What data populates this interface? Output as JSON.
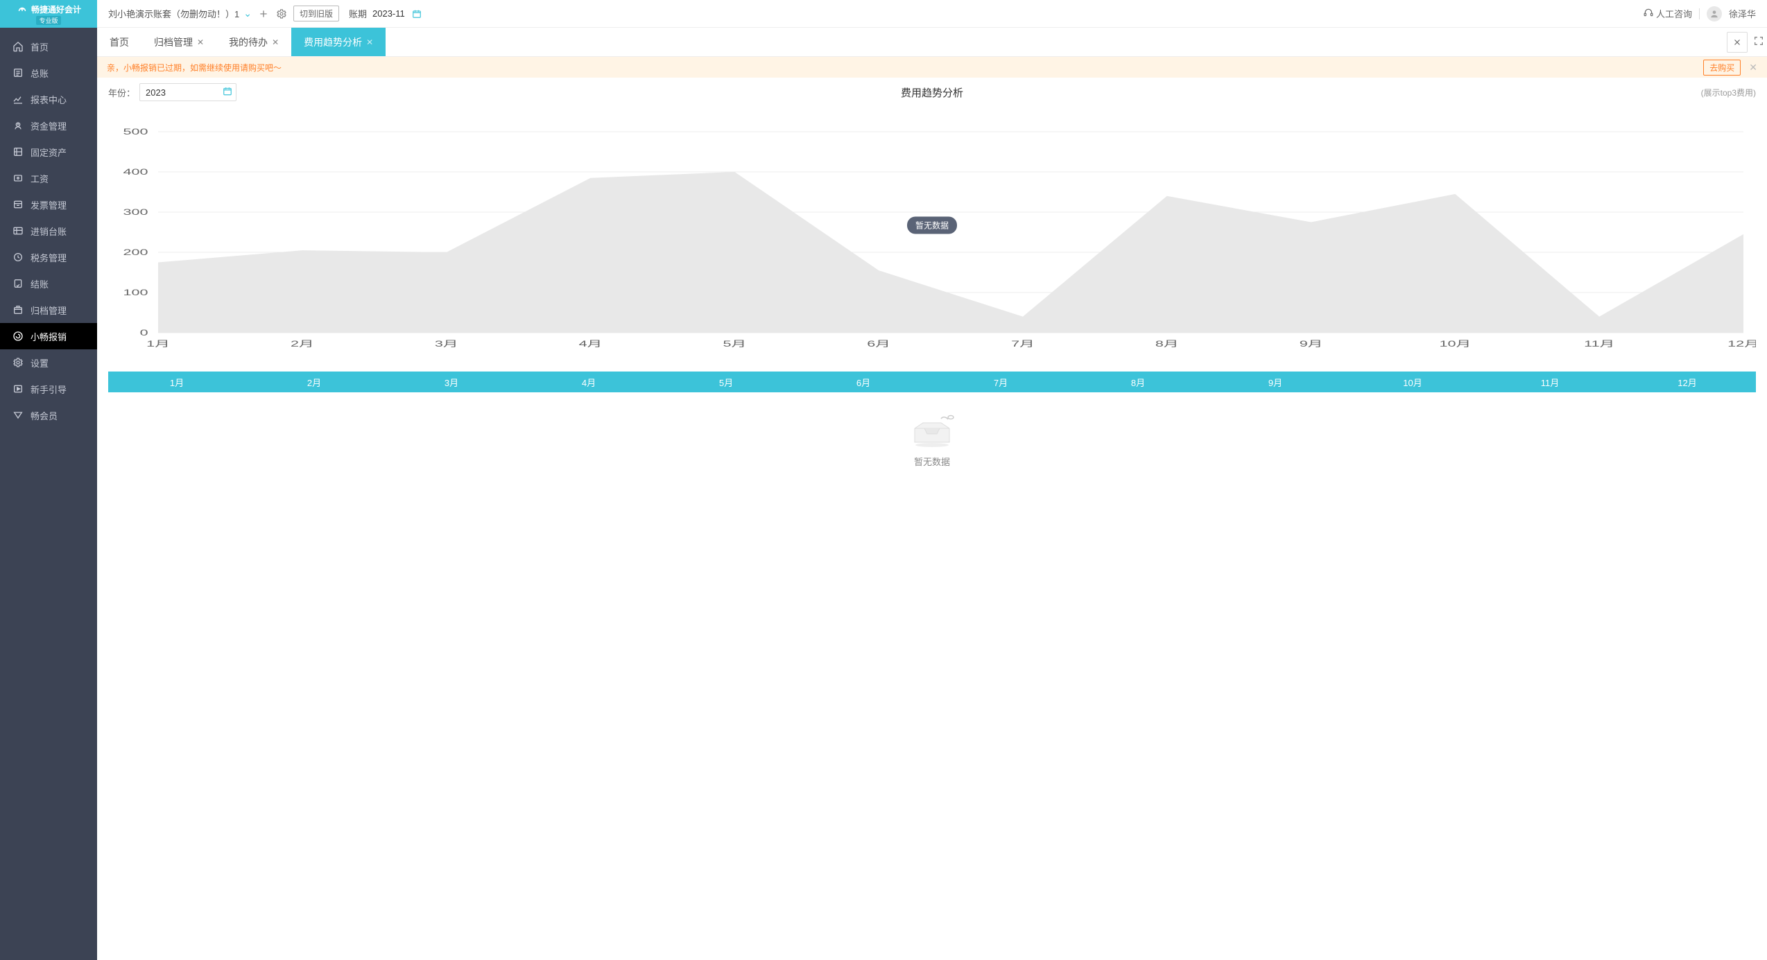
{
  "logo": {
    "text": "畅捷通好会计",
    "sub": "专业版"
  },
  "sidebar": {
    "items": [
      {
        "label": "首页"
      },
      {
        "label": "总账"
      },
      {
        "label": "报表中心"
      },
      {
        "label": "资金管理"
      },
      {
        "label": "固定资产"
      },
      {
        "label": "工资"
      },
      {
        "label": "发票管理"
      },
      {
        "label": "进销台账"
      },
      {
        "label": "税务管理"
      },
      {
        "label": "结账"
      },
      {
        "label": "归档管理"
      },
      {
        "label": "小畅报销"
      },
      {
        "label": "设置"
      },
      {
        "label": "新手引导"
      },
      {
        "label": "畅会员"
      }
    ],
    "active_index": 11
  },
  "header": {
    "account_name": "刘小艳演示账套（勿删勿动！）1",
    "old_version_btn": "切到旧版",
    "period_label": "账期",
    "period_value": "2023-11",
    "support_label": "人工咨询",
    "username": "徐泽华"
  },
  "tabs": {
    "items": [
      {
        "label": "首页",
        "closable": false
      },
      {
        "label": "归档管理",
        "closable": true
      },
      {
        "label": "我的待办",
        "closable": true
      },
      {
        "label": "费用趋势分析",
        "closable": true
      }
    ],
    "active_index": 3
  },
  "warning": {
    "text": "亲，小畅报销已过期，如需继续使用请购买吧～",
    "buy_btn": "去购买"
  },
  "page": {
    "year_label": "年份：",
    "year_value": "2023",
    "title": "费用趋势分析",
    "top_note": "(展示top3费用)"
  },
  "chart": {
    "ylim": [
      0,
      500
    ],
    "yticks": [
      0,
      100,
      200,
      300,
      400,
      500
    ],
    "months": [
      "1月",
      "2月",
      "3月",
      "4月",
      "5月",
      "6月",
      "7月",
      "8月",
      "9月",
      "10月",
      "11月",
      "12月"
    ],
    "values": [
      175,
      205,
      200,
      385,
      400,
      155,
      40,
      340,
      275,
      345,
      40,
      245
    ],
    "area_color": "#e8e8e8",
    "grid_color": "#eeeeee",
    "axis_color": "#cccccc",
    "tick_label_color": "#666666",
    "tick_fontsize": 12,
    "no_data_badge": "暂无数据",
    "month_row_bg": "#3cc3d9",
    "month_row_fg": "#ffffff"
  },
  "empty": {
    "text": "暂无数据"
  },
  "colors": {
    "sidebar_bg": "#3c4354",
    "accent": "#3cc3d9",
    "warn_bg": "#fff4e5",
    "warn_fg": "#ff7f27"
  }
}
